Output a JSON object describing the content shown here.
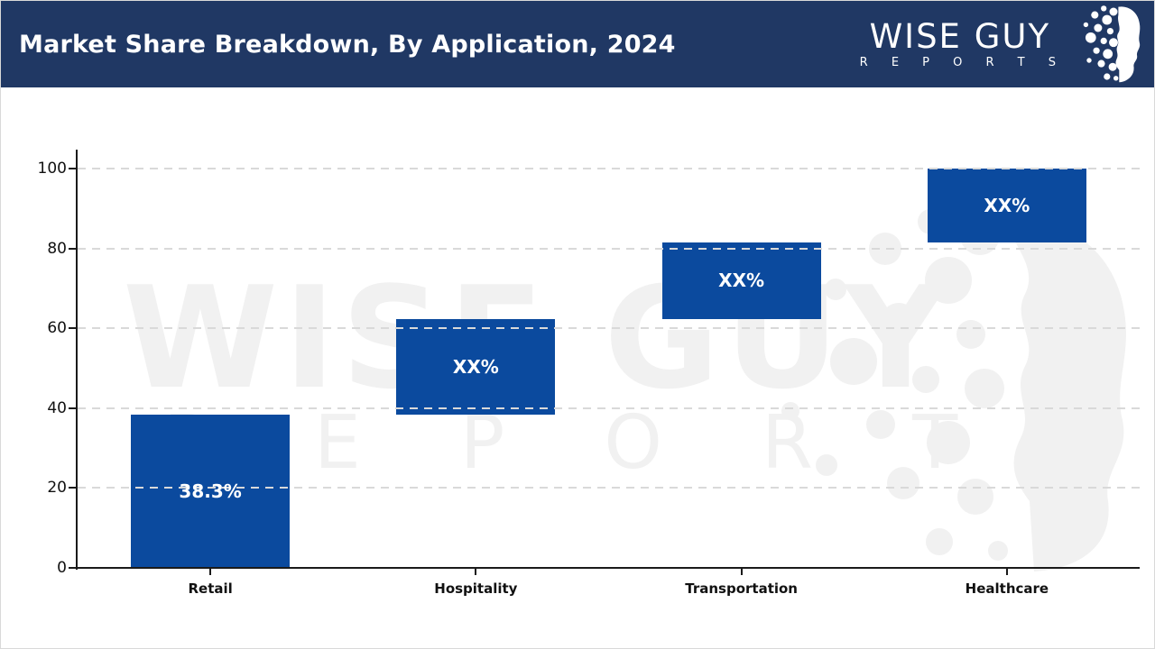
{
  "header": {
    "title": "Market Share Breakdown, By Application, 2024",
    "background_color": "#203864",
    "logo": {
      "line1": "WISE GUY",
      "line2": "R E P O R T S"
    }
  },
  "watermark": {
    "line1": "WISE GUY",
    "line2": "R E P O R T S"
  },
  "chart_data": {
    "type": "bar",
    "subtype": "waterfall",
    "title": "Market Share Breakdown, By Application, 2024",
    "xlabel": "",
    "ylabel": "",
    "categories": [
      "Retail",
      "Hospitality",
      "Transportation",
      "Healthcare"
    ],
    "segments": [
      {
        "category": "Retail",
        "start": 0,
        "end": 38.3,
        "label": "38.3%"
      },
      {
        "category": "Hospitality",
        "start": 38.3,
        "end": 62.3,
        "label": "XX%"
      },
      {
        "category": "Transportation",
        "start": 62.3,
        "end": 81.5,
        "label": "XX%"
      },
      {
        "category": "Healthcare",
        "start": 81.5,
        "end": 100,
        "label": "XX%"
      }
    ],
    "yticks": [
      0,
      20,
      40,
      60,
      80,
      100
    ],
    "ylim": [
      0,
      104.7
    ],
    "grid": "dashed-horizontal-over-bars",
    "legend": "none",
    "bar_color": "#0b4a9e",
    "grid_color": "#d9d9d9",
    "axis_color": "#1a1a1a"
  }
}
